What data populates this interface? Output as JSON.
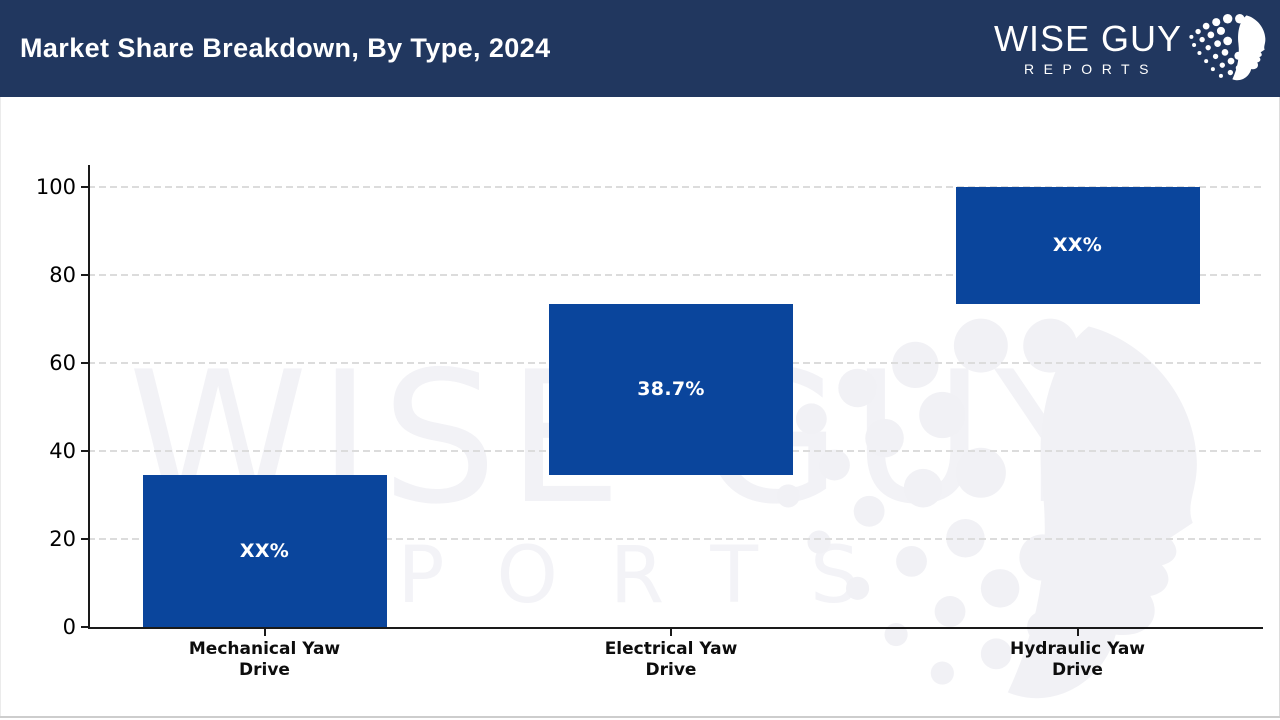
{
  "header": {
    "title": "Market Share Breakdown, By Type, 2024",
    "bg_color": "#21375f",
    "logo": {
      "wordmark": "WISE GUY",
      "subtext": "REPORTS"
    }
  },
  "watermark": {
    "wordmark": "WISE GUY",
    "subtext": "REPORTS"
  },
  "chart_data": {
    "type": "bar",
    "subtype": "floating-waterfall",
    "title": "Market Share Breakdown, By Type, 2024",
    "categories": [
      "Mechanical Yaw\nDrive",
      "Electrical Yaw\nDrive",
      "Hydraulic Yaw\nDrive"
    ],
    "segments": [
      {
        "category": "Mechanical Yaw Drive",
        "label": "XX%",
        "base": 0,
        "top": 34.6
      },
      {
        "category": "Electrical Yaw Drive",
        "label": "38.7%",
        "base": 34.6,
        "top": 73.3
      },
      {
        "category": "Hydraulic Yaw Drive",
        "label": "XX%",
        "base": 73.3,
        "top": 100
      }
    ],
    "bar_color": "#0a459c",
    "label_color": "#ffffff",
    "ylim": [
      0,
      100
    ],
    "yticks": [
      0,
      20,
      40,
      60,
      80,
      100
    ],
    "xlabel": "",
    "ylabel": "",
    "grid": "horizontal-dashed",
    "legend": "none"
  }
}
